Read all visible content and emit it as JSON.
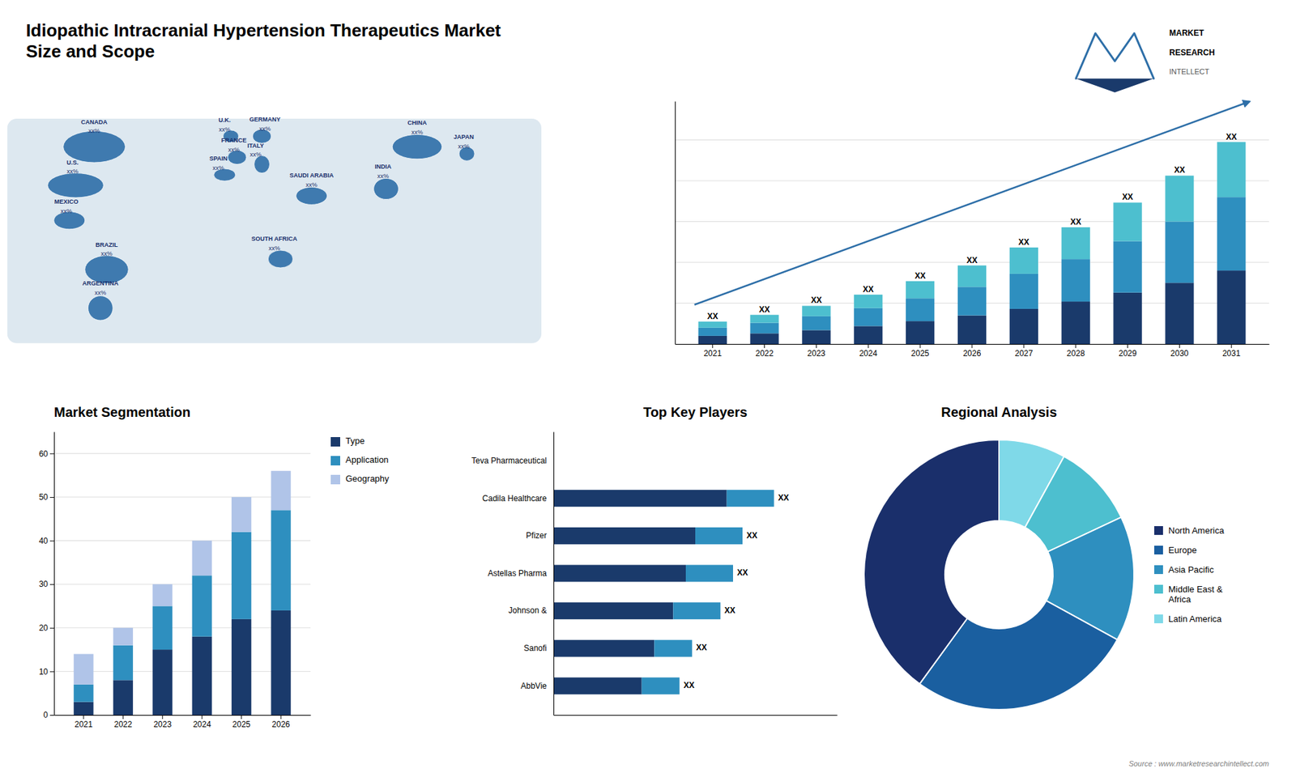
{
  "chart_data": [
    {
      "type": "map",
      "title": "Idiopathic Intracranial Hypertension Therapeutics Market",
      "subtitle": "Size and Scope",
      "categories": [
        "CANADA",
        "U.S.",
        "MEXICO",
        "BRAZIL",
        "ARGENTINA",
        "U.K.",
        "FRANCE",
        "SPAIN",
        "GERMANY",
        "ITALY",
        "SAUDI ARABIA",
        "SOUTH AFRICA",
        "CHINA",
        "INDIA",
        "JAPAN"
      ],
      "labels": [
        "xx%",
        "xx%",
        "xx%",
        "xx%",
        "xx%",
        "xx%",
        "xx%",
        "xx%",
        "xx%",
        "xx%",
        "xx%",
        "xx%",
        "xx%",
        "xx%",
        "xx%"
      ],
      "color": "#2e6fa8",
      "annotations": [
        "MARKET",
        "RESEARCH",
        "INTELLECT"
      ],
      "source": "Source : www.marketresearchintellect.com"
    },
    {
      "type": "bar",
      "stacked": true,
      "categories": [
        2021,
        2022,
        2023,
        2024,
        2025,
        2026,
        2027,
        2028,
        2029,
        2030,
        2031
      ],
      "series": [
        {
          "color": "#1a3a6b",
          "values": [
            0.4,
            0.52,
            0.68,
            0.88,
            1.12,
            1.4,
            1.72,
            2.08,
            2.52,
            3.0,
            3.6
          ]
        },
        {
          "color": "#2e8fbf",
          "values": [
            0.4,
            0.52,
            0.68,
            0.88,
            1.12,
            1.4,
            1.72,
            2.08,
            2.52,
            3.0,
            3.6
          ]
        },
        {
          "color": "#4dbfcf",
          "values": [
            0.3,
            0.39,
            0.51,
            0.66,
            0.84,
            1.05,
            1.29,
            1.56,
            1.89,
            2.25,
            2.7
          ]
        }
      ],
      "ylim": [
        0,
        11.9
      ],
      "yticks": [
        0,
        2,
        4,
        6,
        8,
        10
      ],
      "grid": true,
      "tick_labels": "x",
      "annotations": [
        "XX",
        "XX",
        "XX",
        "XX",
        "XX",
        "XX",
        "XX",
        "XX",
        "XX",
        "XX",
        "XX"
      ]
    },
    {
      "type": "bar",
      "title": "Market Segmentation",
      "stacked": true,
      "categories": [
        2021,
        2022,
        2023,
        2024,
        2025,
        2026
      ],
      "series": [
        {
          "name": "Type",
          "color": "#1a3a6b",
          "values": [
            3,
            8,
            15,
            18,
            22,
            24
          ]
        },
        {
          "name": "Application",
          "color": "#2e8fbf",
          "values": [
            4,
            8,
            10,
            14,
            20,
            23
          ]
        },
        {
          "name": "Geography",
          "color": "#b0c4e8",
          "values": [
            7,
            4,
            5,
            8,
            8,
            9
          ]
        }
      ],
      "ylim": [
        0,
        65
      ],
      "yticks": [
        0,
        10,
        20,
        30,
        40,
        50,
        60
      ],
      "grid": true,
      "legend": "right"
    },
    {
      "type": "bar",
      "title": "Top Key Players",
      "orientation": "horizontal",
      "stacked": true,
      "categories": [
        "Teva Pharmaceutical",
        "Cadila Healthcare",
        "Pfizer",
        "Astellas Pharma",
        "Johnson &",
        "Sanofi",
        "AbbVie"
      ],
      "series": [
        {
          "color": "#1a3a6b",
          "values": [
            0,
            5.5,
            4.5,
            4.2,
            3.8,
            3.2,
            2.8
          ]
        },
        {
          "color": "#2e8fbf",
          "values": [
            0,
            1.5,
            1.5,
            1.5,
            1.5,
            1.2,
            1.2
          ]
        }
      ],
      "xlim": [
        0,
        9
      ],
      "grid": false,
      "tick_labels": "y",
      "annotations": [
        "XX",
        "XX",
        "XX",
        "XX",
        "XX",
        "XX"
      ]
    },
    {
      "type": "pie",
      "title": "Regional Analysis",
      "categories": [
        "Latin America",
        "Middle East &\nAfrica",
        "Asia Pacific",
        "Europe",
        "North America"
      ],
      "values": [
        8,
        10,
        15,
        27,
        40
      ],
      "colors": [
        "#7fd9e8",
        "#4dbfcf",
        "#2e8fbf",
        "#1a5fa0",
        "#1a2f6b"
      ],
      "legend": "right"
    }
  ]
}
